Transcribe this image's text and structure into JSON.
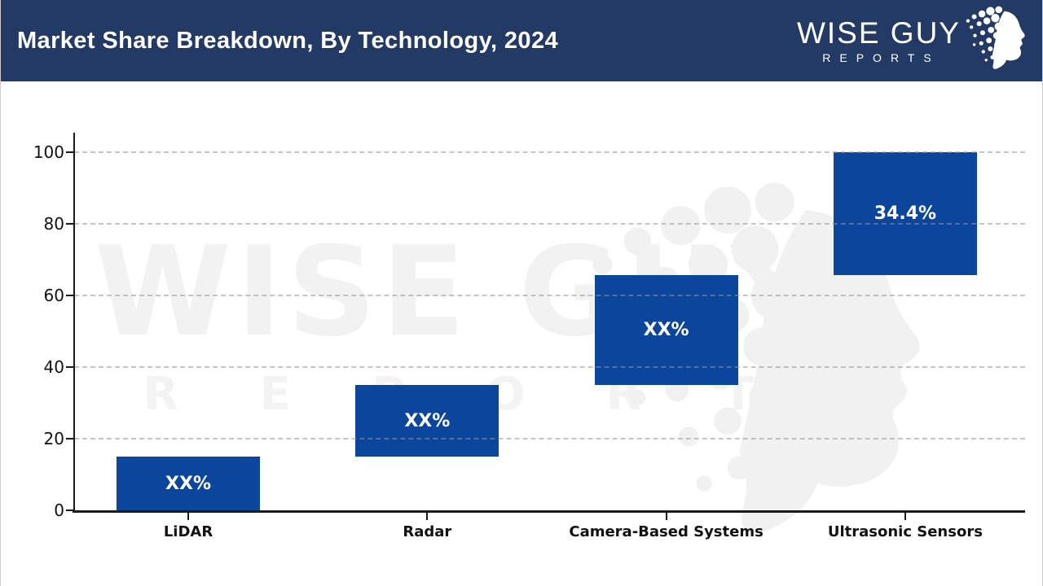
{
  "header": {
    "title": "Market Share Breakdown, By Technology, 2024",
    "logo": {
      "line1": "WISE GUY",
      "line2": "REPORTS",
      "icon": "dotted-face-profile"
    }
  },
  "watermark": {
    "line1": "WISE GUY",
    "line2": "R E P O R T S"
  },
  "colors": {
    "header_bg": "#223a64",
    "bar": "#0b459c",
    "axis": "#1a1a1a",
    "grid": "#c9c9c9",
    "watermark": "#f2f2f2",
    "page_border": "#cccccc",
    "bar_label": "#ffffff",
    "title_text": "#ffffff"
  },
  "chart_data": {
    "type": "bar",
    "subtype": "floating-waterfall",
    "title": "Market Share Breakdown, By Technology, 2024",
    "xlabel": "",
    "ylabel": "",
    "ylim": [
      0,
      100
    ],
    "yticks": [
      0,
      20,
      40,
      60,
      80,
      100
    ],
    "grid": "horizontal-dashed",
    "legend": "none",
    "categories": [
      "LiDAR",
      "Radar",
      "Camera-Based Systems",
      "Ultrasonic Sensors"
    ],
    "segments": [
      {
        "category": "LiDAR",
        "start": 0,
        "end": 15,
        "value_label": "XX%"
      },
      {
        "category": "Radar",
        "start": 15,
        "end": 35,
        "value_label": "XX%"
      },
      {
        "category": "Camera-Based Systems",
        "start": 35,
        "end": 65.6,
        "value_label": "XX%"
      },
      {
        "category": "Ultrasonic Sensors",
        "start": 65.6,
        "end": 100,
        "value_label": "34.4%"
      }
    ]
  }
}
